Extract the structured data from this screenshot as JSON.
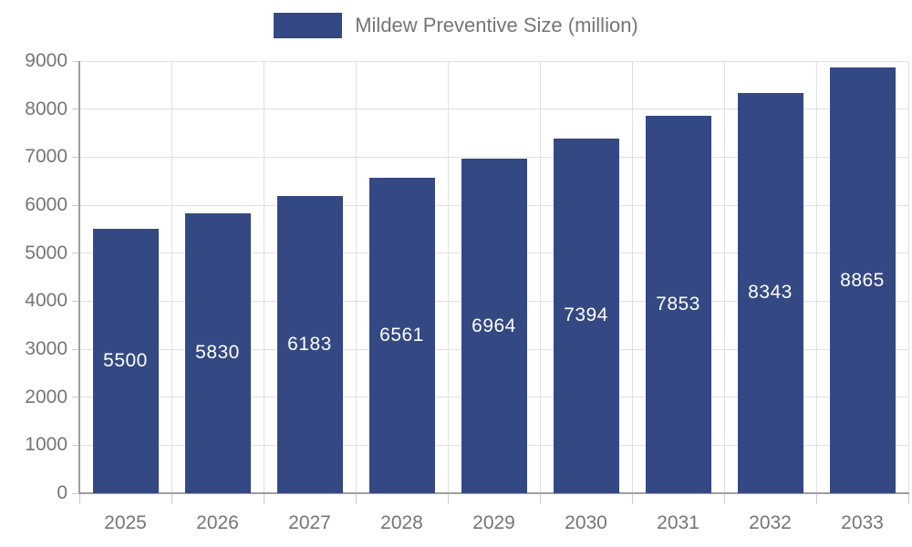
{
  "legend": {
    "label": "Mildew Preventive Size (million)"
  },
  "chart_data": {
    "type": "bar",
    "title": "",
    "xlabel": "",
    "ylabel": "",
    "categories": [
      "2025",
      "2026",
      "2027",
      "2028",
      "2029",
      "2030",
      "2031",
      "2032",
      "2033"
    ],
    "series": [
      {
        "name": "Mildew Preventive Size (million)",
        "values": [
          5500,
          5830,
          6183,
          6561,
          6964,
          7394,
          7853,
          8343,
          8865
        ]
      }
    ],
    "value_labels_shown": true,
    "ylim": [
      0,
      9000
    ],
    "yticks": [
      0,
      1000,
      2000,
      3000,
      4000,
      5000,
      6000,
      7000,
      8000,
      9000
    ],
    "grid": "horizontal-and-vertical",
    "legend_position": "top-center",
    "colors": {
      "bar": "#344983",
      "value_label": "#ffffff",
      "axis_text": "#757575",
      "legend_text": "#757575",
      "gridline": "#e0e0e0",
      "axis_line": "#9e9e9e",
      "tick": "#cccccc",
      "background": "#ffffff"
    }
  }
}
